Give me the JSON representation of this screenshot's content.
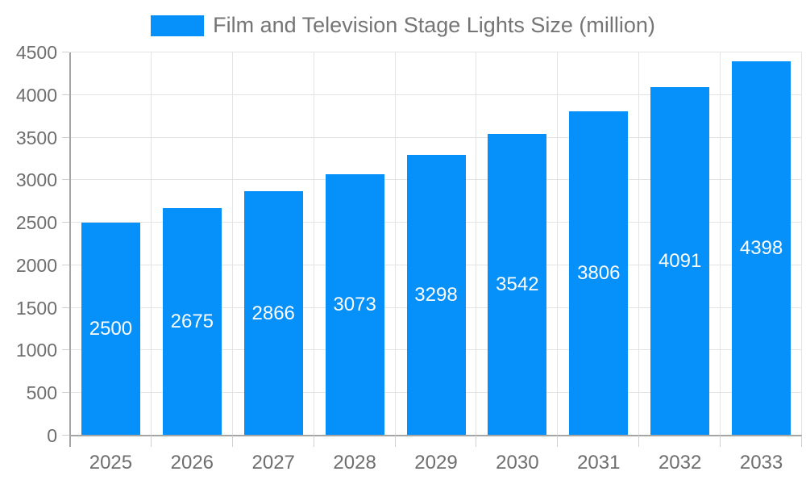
{
  "chart_data": {
    "type": "bar",
    "title": "Film and Television Stage Lights Size (million)",
    "categories": [
      "2025",
      "2026",
      "2027",
      "2028",
      "2029",
      "2030",
      "2031",
      "2032",
      "2033"
    ],
    "values": [
      2500,
      2675,
      2866,
      3073,
      3298,
      3542,
      3806,
      4091,
      4398
    ],
    "series": [
      {
        "name": "Film and Television Stage Lights Size (million)",
        "values": [
          2500,
          2675,
          2866,
          3073,
          3298,
          3542,
          3806,
          4091,
          4398
        ]
      }
    ],
    "xlabel": "",
    "ylabel": "",
    "ylim": [
      0,
      4500
    ],
    "ytick_step": 500,
    "yticks": [
      0,
      500,
      1000,
      1500,
      2000,
      2500,
      3000,
      3500,
      4000,
      4500
    ],
    "grid": true,
    "legend_position": "top",
    "bar_labels_inside": true,
    "colors": {
      "bar": "#0590FA",
      "bar_label_text": "#ffffff",
      "grid_line": "#e4e4e4",
      "axis_line": "#a5a5a5",
      "tick_mark": "#d0d0d0",
      "axis_text": "#6e6e6e",
      "legend_text": "#757575",
      "background": "#ffffff"
    }
  }
}
